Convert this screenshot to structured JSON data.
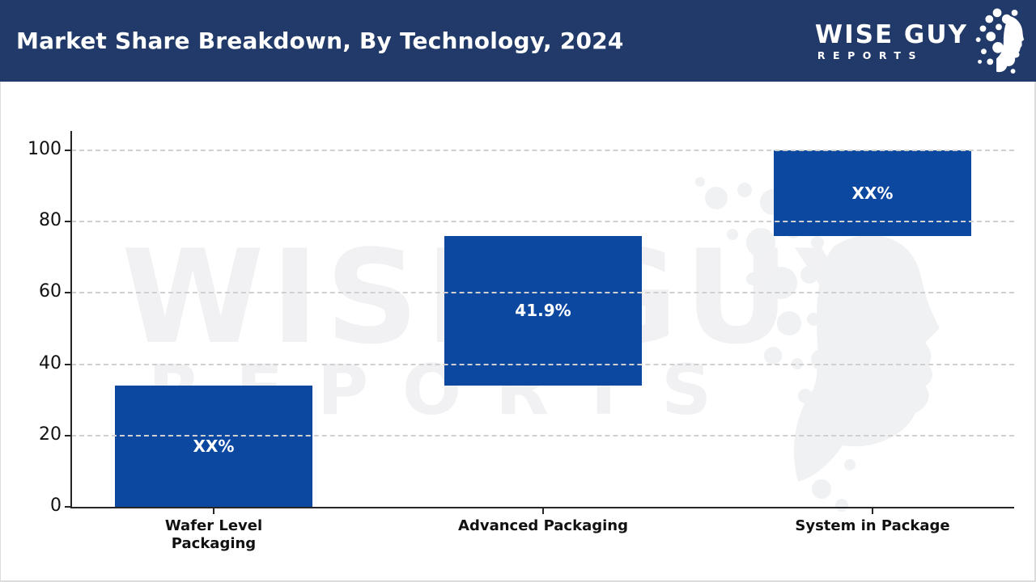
{
  "header": {
    "title": "Market Share Breakdown, By Technology, 2024",
    "logo": {
      "wordmark": "WISE GUY",
      "subtext": "REPORTS"
    },
    "bg_color": "#213a69"
  },
  "watermark": {
    "line1": "WISE GUY",
    "line2": "REPORTS"
  },
  "chart_data": {
    "type": "bar",
    "variant": "floating-segment-waterfall",
    "title": "Market Share Breakdown, By Technology, 2024",
    "categories": [
      "Wafer Level\nPackaging",
      "Advanced Packaging",
      "System in Package"
    ],
    "segments": [
      {
        "category": "Wafer Level Packaging",
        "start": 0,
        "end": 34.1,
        "height_pct_est": 34.1,
        "value_label": "XX%"
      },
      {
        "category": "Advanced Packaging",
        "start": 34.1,
        "end": 76.0,
        "height_pct_est": 41.9,
        "value_label": "41.9%"
      },
      {
        "category": "System in Package",
        "start": 76.0,
        "end": 100.0,
        "height_pct_est": 24.0,
        "value_label": "XX%"
      }
    ],
    "ylim": [
      0,
      100
    ],
    "yticks": [
      0,
      20,
      40,
      60,
      80,
      100
    ],
    "xlabel": "",
    "ylabel": "",
    "grid": {
      "horizontal": true,
      "style": "dashed",
      "color": "#d0d0d0",
      "drawn_above_bars": true
    },
    "legend": "none",
    "bar_color": "#0c48a0",
    "bar_label_color": "#ffffff",
    "axis_color": "#262626",
    "tick_label_color": "#111111"
  }
}
